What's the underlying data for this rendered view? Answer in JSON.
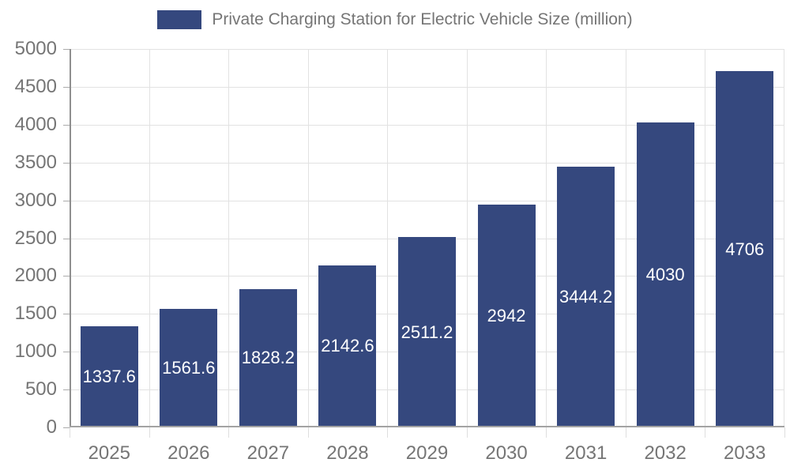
{
  "legend": {
    "items": [
      {
        "label": "Private Charging Station for Electric Vehicle Size (million)",
        "color": "#35487E"
      }
    ]
  },
  "colors": {
    "bar": "#35487E",
    "axis_text": "#757575",
    "value_label": "#ffffff",
    "grid": "#e2e2e2",
    "axis_line": "#8f8f8f",
    "background": "#ffffff"
  },
  "chart_data": {
    "type": "bar",
    "title": "Private Charging Station for Electric Vehicle Size (million)",
    "series_name": "Private Charging Station for Electric Vehicle Size (million)",
    "categories": [
      "2025",
      "2026",
      "2027",
      "2028",
      "2029",
      "2030",
      "2031",
      "2032",
      "2033"
    ],
    "values": [
      1337.6,
      1561.6,
      1828.2,
      2142.6,
      2511.2,
      2942,
      3444.2,
      4030,
      4706
    ],
    "value_labels": [
      "1337.6",
      "1561.6",
      "1828.2",
      "2142.6",
      "2511.2",
      "2942",
      "3444.2",
      "4030",
      "4706"
    ],
    "xlabel": "",
    "ylabel": "",
    "ylim": [
      0,
      5000
    ],
    "yticks": [
      0,
      500,
      1000,
      1500,
      2000,
      2500,
      3000,
      3500,
      4000,
      4500,
      5000
    ],
    "ytick_labels": [
      "0",
      "500",
      "1000",
      "1500",
      "2000",
      "2500",
      "3000",
      "3500",
      "4000",
      "4500",
      "5000"
    ],
    "grid": true,
    "legend_position": "top"
  }
}
